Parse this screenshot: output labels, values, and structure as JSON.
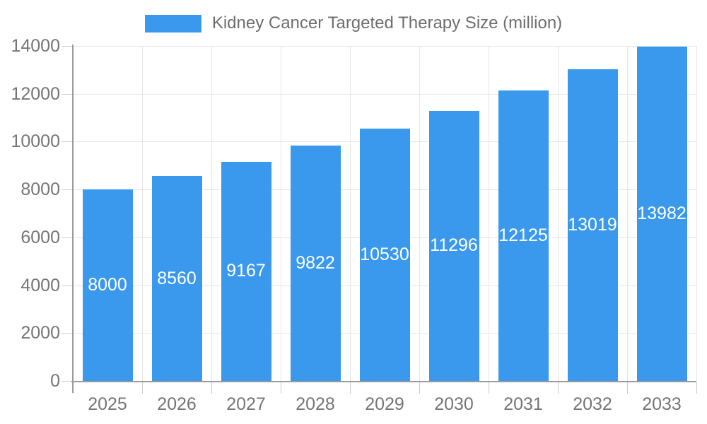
{
  "chart_data": {
    "type": "bar",
    "title": "",
    "categories": [
      "2025",
      "2026",
      "2027",
      "2028",
      "2029",
      "2030",
      "2031",
      "2032",
      "2033"
    ],
    "series": [
      {
        "name": "Kidney Cancer Targeted Therapy Size (million)",
        "values": [
          8000,
          8560,
          9167,
          9822,
          10530,
          11296,
          12125,
          13019,
          13982
        ]
      }
    ],
    "xlabel": "",
    "ylabel": "",
    "ylim": [
      0,
      14000
    ],
    "yticks": [
      0,
      2000,
      4000,
      6000,
      8000,
      10000,
      12000,
      14000
    ],
    "grid": true,
    "legend_position": "top",
    "value_labels_shown_inside_bars": true,
    "colors": {
      "bar": "#3B99ED",
      "value_label": "#ffffff",
      "axis_label": "#757575",
      "legend_text": "#6e6e6e",
      "gridline": "#e6e6e6",
      "axis_line": "#9a9a9a",
      "background": "#ffffff"
    }
  }
}
